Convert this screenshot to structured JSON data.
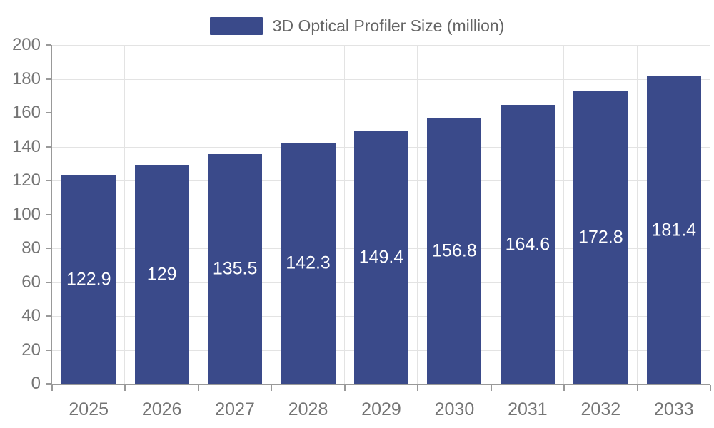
{
  "chart_data": {
    "type": "bar",
    "title": "3D Optical Profiler Size (million)",
    "categories": [
      "2025",
      "2026",
      "2027",
      "2028",
      "2029",
      "2030",
      "2031",
      "2032",
      "2033"
    ],
    "series": [
      {
        "name": "3D Optical Profiler Size (million)",
        "values": [
          122.9,
          129,
          135.5,
          142.3,
          149.4,
          156.8,
          164.6,
          172.8,
          181.4
        ]
      }
    ],
    "xlabel": "",
    "ylabel": "",
    "ylim": [
      0,
      200
    ],
    "ytick_interval": 20,
    "ytick_labels": [
      "0",
      "20",
      "40",
      "60",
      "80",
      "100",
      "120",
      "140",
      "160",
      "180",
      "200"
    ],
    "legend_position": "top",
    "grid": true,
    "value_labels_shown": true,
    "colors": {
      "bar": "#3A4A8A",
      "bar_value_text": "#FFFFFF",
      "axis_label": "#757575",
      "legend_text": "#666666",
      "axis_line": "#999999",
      "gridline": "#E3E3E3"
    }
  }
}
